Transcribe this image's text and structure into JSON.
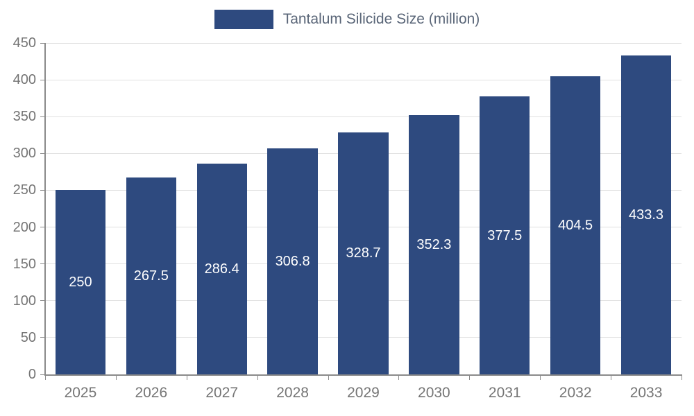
{
  "chart_data": {
    "type": "bar",
    "title": "Tantalum Silicide Size (million)",
    "legend_entries": [
      "Tantalum Silicide Size (million)"
    ],
    "legend_position": "top",
    "categories": [
      "2025",
      "2026",
      "2027",
      "2028",
      "2029",
      "2030",
      "2031",
      "2032",
      "2033"
    ],
    "values": [
      250,
      267.5,
      286.4,
      306.8,
      328.7,
      352.3,
      377.5,
      404.5,
      433.3
    ],
    "value_labels": [
      "250",
      "267.5",
      "286.4",
      "306.8",
      "328.7",
      "352.3",
      "377.5",
      "404.5",
      "433.3"
    ],
    "xlabel": "",
    "ylabel": "",
    "ylim": [
      0,
      450
    ],
    "ytick_step": 50,
    "ytick_labels": [
      "0",
      "50",
      "100",
      "150",
      "200",
      "250",
      "300",
      "350",
      "400",
      "450"
    ],
    "grid": true,
    "colors": {
      "bar": "#2e4a7f",
      "value_label": "#ffffff",
      "axis_text": "#757575",
      "legend_text": "#5a6678",
      "gridline": "#e0e0e0",
      "axis_line": "#8a8a8a",
      "background": "#ffffff"
    }
  }
}
